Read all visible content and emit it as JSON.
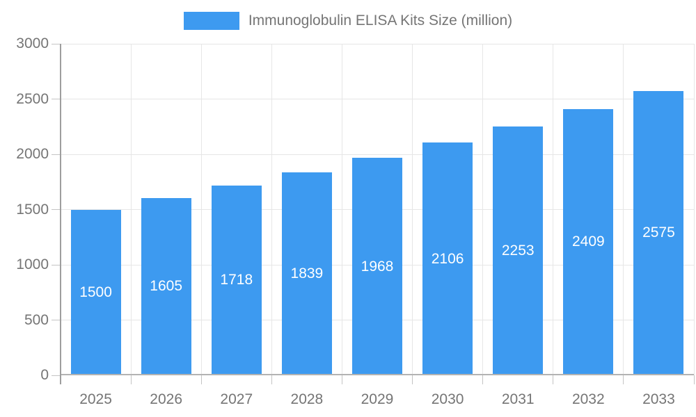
{
  "legend": {
    "label": "Immunoglobulin ELISA Kits Size (million)"
  },
  "colors": {
    "bar": "#3d9af0",
    "bar_value_label": "#ffffff",
    "axis_text": "#757575",
    "gridline": "#e6e6e6",
    "axis_line": "#9e9e9e",
    "tick": "#c4c4c4"
  },
  "chart_data": {
    "type": "bar",
    "title": "",
    "xlabel": "",
    "ylabel": "",
    "categories": [
      "2025",
      "2026",
      "2027",
      "2028",
      "2029",
      "2030",
      "2031",
      "2032",
      "2033"
    ],
    "values": [
      1500,
      1605,
      1718,
      1839,
      1968,
      2106,
      2253,
      2409,
      2575
    ],
    "series_name": "Immunoglobulin ELISA Kits Size (million)",
    "ylim": [
      0,
      3000
    ],
    "yticks": [
      0,
      500,
      1000,
      1500,
      2000,
      2500,
      3000
    ],
    "grid": true,
    "legend_position": "top",
    "bar_labels_inside": true
  }
}
